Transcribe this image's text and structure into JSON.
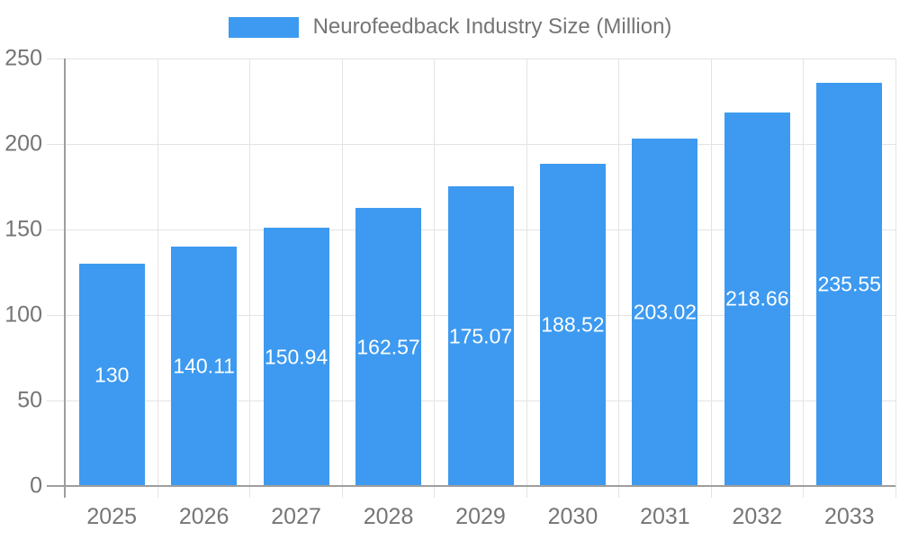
{
  "chart_data": {
    "type": "bar",
    "legend": "Neurofeedback Industry Size (Million)",
    "legend_position": "top-center",
    "categories": [
      "2025",
      "2026",
      "2027",
      "2028",
      "2029",
      "2030",
      "2031",
      "2032",
      "2033"
    ],
    "values": [
      130,
      140.11,
      150.94,
      162.57,
      175.07,
      188.52,
      203.02,
      218.66,
      235.55
    ],
    "value_labels": [
      "130",
      "140.11",
      "150.94",
      "162.57",
      "175.07",
      "188.52",
      "203.02",
      "218.66",
      "235.55"
    ],
    "xlabel": "",
    "ylabel": "",
    "ylim": [
      0,
      250
    ],
    "yticks": [
      0,
      50,
      100,
      150,
      200,
      250
    ],
    "ytick_labels": [
      "0",
      "50",
      "100",
      "150",
      "200",
      "250"
    ],
    "grid": true,
    "colors": {
      "bar": "#3D9AF0",
      "gridline": "#E3E3E3",
      "axis_line": "#9E9E9E",
      "axis_text": "#757575",
      "legend_text": "#757575",
      "bar_label_text": "#FFFFFF",
      "background": "#FFFFFF"
    }
  }
}
